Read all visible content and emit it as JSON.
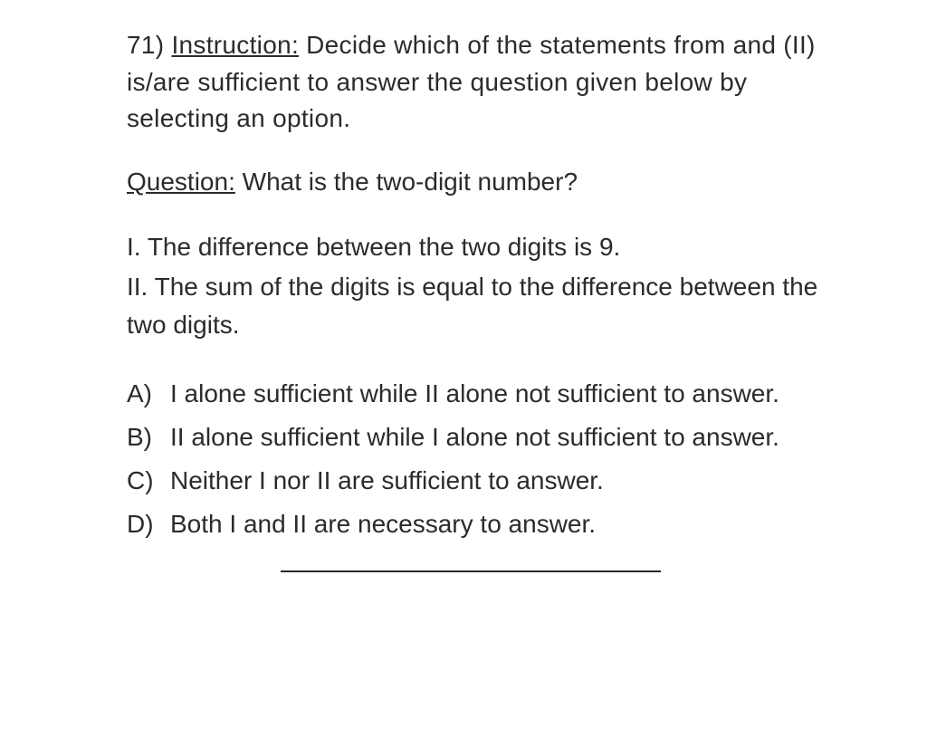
{
  "question": {
    "number": "71)",
    "instruction_label": "Instruction:",
    "instruction_text": "Decide which of the statements from and (II) is/are sufficient to answer the question given below by selecting an option.",
    "question_label": "Question:",
    "question_text": "What is the two-digit number?",
    "statements": [
      "I. The difference between the two digits is 9.",
      "II. The sum of the digits is equal to the difference between the two digits."
    ],
    "options": [
      {
        "letter": "A)",
        "text": "I alone sufficient while II alone not sufficient to answer."
      },
      {
        "letter": "B)",
        "text": "II alone sufficient while I alone not sufficient to answer."
      },
      {
        "letter": "C)",
        "text": "Neither I nor II are sufficient to answer."
      },
      {
        "letter": "D)",
        "text": "Both I and II are necessary to answer."
      }
    ]
  },
  "style": {
    "text_color": "#2b2b2b",
    "background_color": "#ffffff",
    "font_size_main": 28,
    "divider_color": "#2b2b2b"
  }
}
